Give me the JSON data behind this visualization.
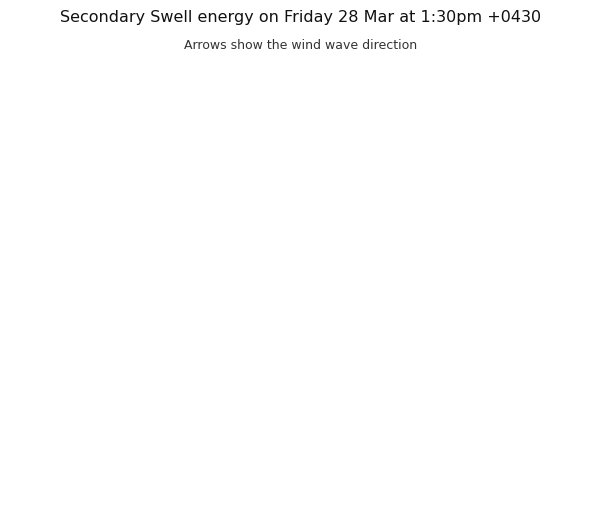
{
  "title": "Secondary Swell energy on Friday 28 Mar at 1:30pm +0430",
  "subtitle": "Arrows show the wind wave direction",
  "title_fontsize": 11.5,
  "subtitle_fontsize": 9,
  "background_color": "#ffffff",
  "figsize": [
    6.01,
    5.1
  ],
  "dpi": 100,
  "extent": [
    43.5,
    80.5,
    19.5,
    45.5
  ],
  "land_color": "#aaaaaa",
  "water_color": "#000000",
  "border_color": "#000000",
  "border_lw": 0.5,
  "dot_color": "#00ccff",
  "dot_lon": 79.9,
  "dot_lat": 19.8
}
